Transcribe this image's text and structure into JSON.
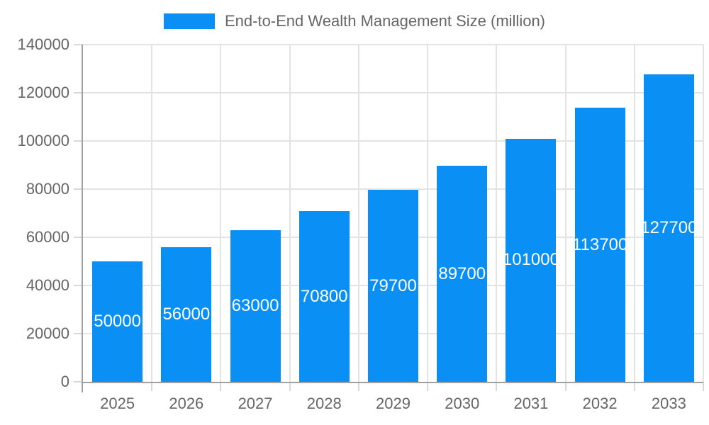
{
  "chart_data": {
    "type": "bar",
    "title": "",
    "xlabel": "",
    "ylabel": "",
    "legend_position": "top-center",
    "categories": [
      "2025",
      "2026",
      "2027",
      "2028",
      "2029",
      "2030",
      "2031",
      "2032",
      "2033"
    ],
    "series": [
      {
        "name": "End-to-End Wealth Management Size (million)",
        "values": [
          50000,
          56000,
          63000,
          70800,
          79700,
          89700,
          101000,
          113700,
          127700
        ]
      }
    ],
    "data_labels": [
      "50000",
      "56000",
      "63000",
      "70800",
      "79700",
      "89700",
      "101000",
      "113700",
      "127700"
    ],
    "data_label_style": "inside-center-white",
    "ylim": [
      0,
      140000
    ],
    "ytick_step": 20000,
    "yticks": [
      "0",
      "20000",
      "40000",
      "60000",
      "80000",
      "100000",
      "120000",
      "140000"
    ],
    "grid": true,
    "colors": {
      "bar": "#0a90f4",
      "bar_value_label": "#ffffff",
      "axis_text": "#666666",
      "grid_line": "#e3e3e3",
      "tick_mark": "#d9d9d9",
      "axis_line": "#a0a0a0",
      "background": "#ffffff"
    }
  },
  "legend": {
    "label": "End-to-End Wealth Management Size (million)"
  }
}
